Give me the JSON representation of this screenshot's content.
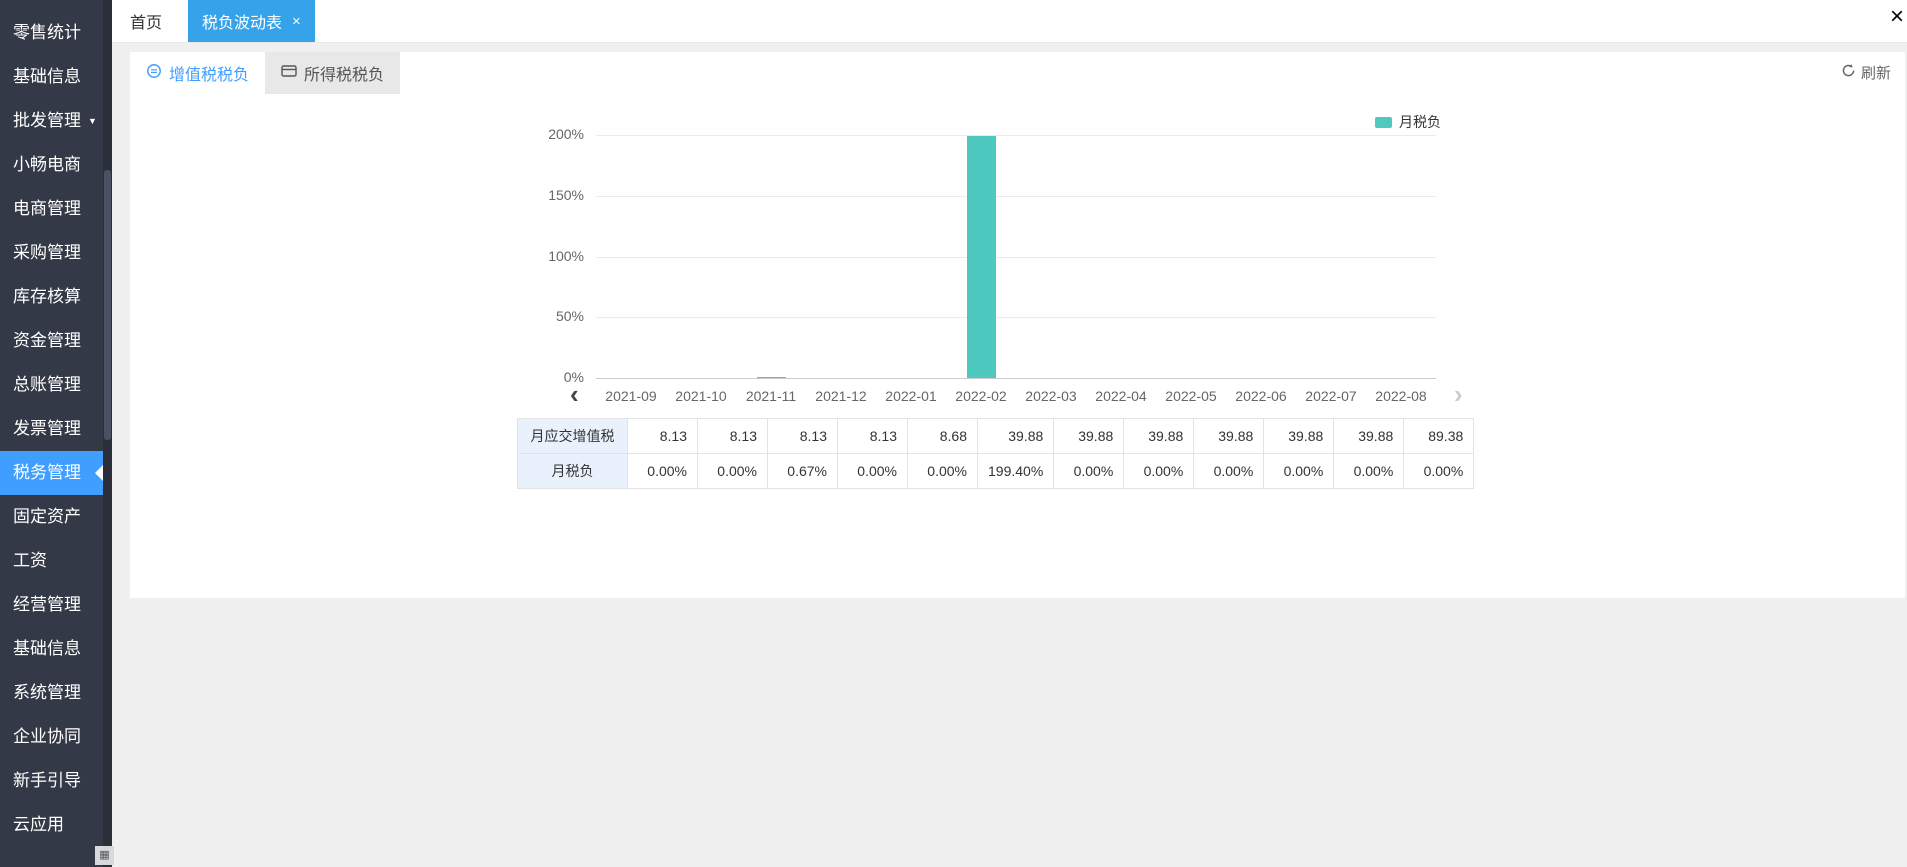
{
  "colors": {
    "accent": "#409eff",
    "sidebar_bg": "#343947",
    "tab_active_bg": "#35a2ea",
    "bar": "#4ec9c0",
    "table_header_bg": "#e9f2fc",
    "content_bg": "#f0f0f0"
  },
  "sidebar": {
    "items": [
      {
        "label": "零售统计"
      },
      {
        "label": "基础信息"
      },
      {
        "label": "批发管理",
        "caret": true
      },
      {
        "label": "小畅电商"
      },
      {
        "label": "电商管理"
      },
      {
        "label": "采购管理"
      },
      {
        "label": "库存核算"
      },
      {
        "label": "资金管理"
      },
      {
        "label": "总账管理"
      },
      {
        "label": "发票管理"
      },
      {
        "label": "税务管理",
        "active": true
      },
      {
        "label": "固定资产"
      },
      {
        "label": "工资"
      },
      {
        "label": "经营管理"
      },
      {
        "label": "基础信息"
      },
      {
        "label": "系统管理"
      },
      {
        "label": "企业协同"
      },
      {
        "label": "新手引导"
      },
      {
        "label": "云应用"
      }
    ],
    "corner_glyph": "▦"
  },
  "topbar": {
    "home_tab": "首页",
    "active_tab": "税负波动表",
    "tab_close": "×",
    "window_close": "×"
  },
  "panel": {
    "tabs": [
      {
        "label": "增值税税负",
        "active": true
      },
      {
        "label": "所得税税负",
        "active": false
      }
    ],
    "refresh_label": "刷新"
  },
  "pagination": {
    "prev": "‹",
    "next": "›"
  },
  "chart_data": {
    "type": "bar",
    "title": "",
    "categories": [
      "2021-09",
      "2021-10",
      "2021-11",
      "2021-12",
      "2022-01",
      "2022-02",
      "2022-03",
      "2022-04",
      "2022-05",
      "2022-06",
      "2022-07",
      "2022-08"
    ],
    "series": [
      {
        "name": "月税负",
        "color": "#4ec9c0",
        "values": [
          0.0,
          0.0,
          0.67,
          0.0,
          0.0,
          199.4,
          0.0,
          0.0,
          0.0,
          0.0,
          0.0,
          0.0
        ]
      }
    ],
    "xlabel": "",
    "ylabel": "",
    "ylim": [
      0,
      200
    ],
    "yticks": [
      {
        "label": "0%",
        "value": 0
      },
      {
        "label": "50%",
        "value": 50
      },
      {
        "label": "100%",
        "value": 100
      },
      {
        "label": "150%",
        "value": 150
      },
      {
        "label": "200%",
        "value": 200
      }
    ],
    "grid": true,
    "legend": [
      "月税负"
    ],
    "legend_position": "top-right"
  },
  "table": {
    "rows": [
      {
        "label": "月应交增值税",
        "values": [
          "8.13",
          "8.13",
          "8.13",
          "8.13",
          "8.68",
          "39.88",
          "39.88",
          "39.88",
          "39.88",
          "39.88",
          "39.88",
          "89.38"
        ]
      },
      {
        "label": "月税负",
        "values": [
          "0.00%",
          "0.00%",
          "0.67%",
          "0.00%",
          "0.00%",
          "199.40%",
          "0.00%",
          "0.00%",
          "0.00%",
          "0.00%",
          "0.00%",
          "0.00%"
        ]
      }
    ]
  }
}
